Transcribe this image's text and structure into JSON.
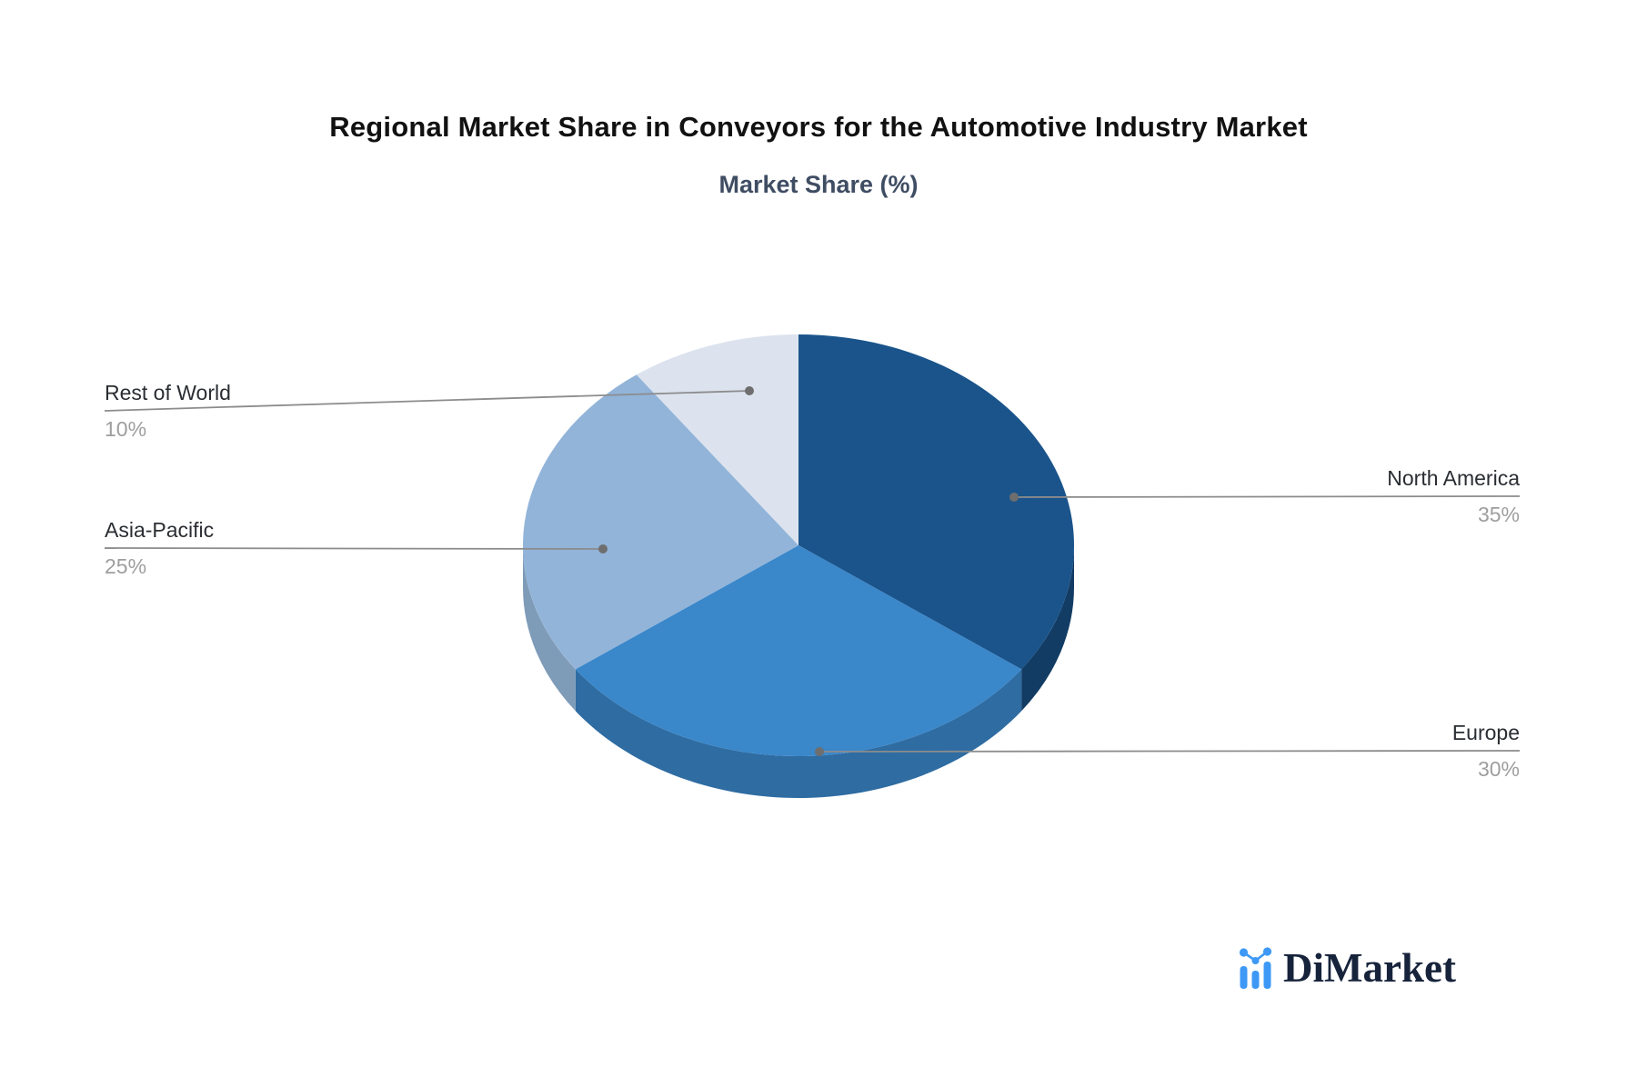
{
  "header": {
    "title": "Regional Market Share in Conveyors for the Automotive Industry Market",
    "subtitle": "Market Share (%)"
  },
  "chart_data": {
    "type": "pie",
    "style": "3d",
    "title": "Regional Market Share in Conveyors for the Automotive Industry Market",
    "subtitle": "Market Share (%)",
    "unit": "%",
    "legend_position": "none",
    "start_angle_deg": 0,
    "direction": "clockwise",
    "categories": [
      "North America",
      "Europe",
      "Asia-Pacific",
      "Rest of World"
    ],
    "values": [
      35,
      30,
      25,
      10
    ],
    "slices": [
      {
        "name": "North America",
        "value": 35,
        "label": "35%",
        "color": "#1A548B",
        "side_color": "#123C64"
      },
      {
        "name": "Europe",
        "value": 30,
        "label": "30%",
        "color": "#3A87CA",
        "side_color": "#2E6CA2"
      },
      {
        "name": "Asia-Pacific",
        "value": 25,
        "label": "25%",
        "color": "#92B4D9",
        "side_color": "#7E9BB8"
      },
      {
        "name": "Rest of World",
        "value": 10,
        "label": "10%",
        "color": "#DCE3EE",
        "side_color": "#B9C4D4"
      }
    ]
  },
  "colors": {
    "connector_line": "#8C8C8C",
    "connector_dot": "#6E6E6E",
    "label_name": "#2A2E33",
    "label_value": "#9E9E9E",
    "title": "#111111",
    "subtitle": "#3F4D63"
  },
  "branding": {
    "logo_text": "DiMarket",
    "logo_icon": "bar-line-chart-icon",
    "icon_color": "#3D99F5",
    "text_color": "#16233B"
  }
}
